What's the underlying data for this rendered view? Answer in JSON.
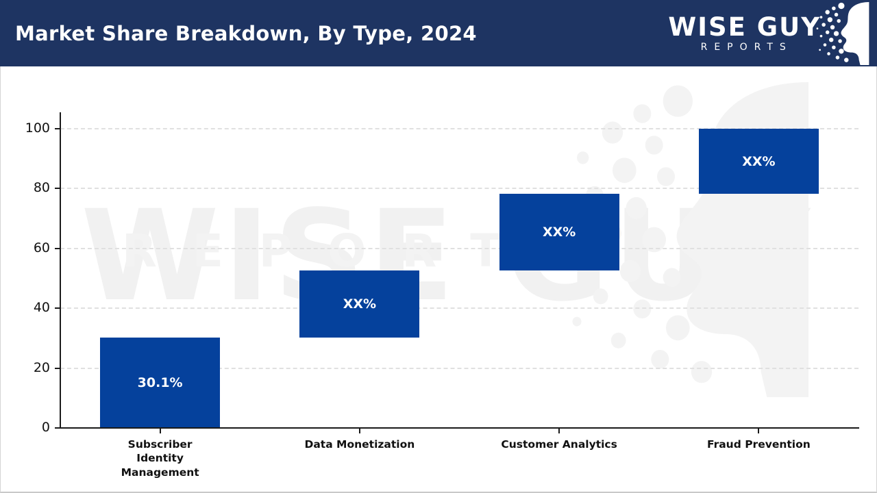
{
  "header": {
    "title": "Market Share Breakdown, By Type, 2024",
    "logo": {
      "line1": "WISE GUY",
      "line2": "REPORTS"
    }
  },
  "watermark": {
    "line1": "WISE GUY",
    "line2": "REPORTS"
  },
  "colors": {
    "header_bg": "#1e3462",
    "bar": "#05419c",
    "grid": "#e0e0e0",
    "axis": "#1a1a1a",
    "bar_label": "#ffffff",
    "watermark": "#f1f1f1"
  },
  "chart_data": {
    "type": "bar",
    "subtype": "waterfall",
    "title": "Market Share Breakdown, By Type, 2024",
    "categories": [
      "Subscriber Identity Management",
      "Data Monetization",
      "Customer Analytics",
      "Fraud Prevention"
    ],
    "category_display_lines": [
      [
        "Subscriber",
        "Identity",
        "Management"
      ],
      [
        "Data Monetization"
      ],
      [
        "Customer Analytics"
      ],
      [
        "Fraud Prevention"
      ]
    ],
    "segments": [
      {
        "category": "Subscriber Identity Management",
        "start": 0,
        "end": 30.1,
        "label": "30.1%"
      },
      {
        "category": "Data Monetization",
        "start": 30.1,
        "end": 52.6,
        "label": "XX%"
      },
      {
        "category": "Customer Analytics",
        "start": 52.6,
        "end": 78.2,
        "label": "XX%"
      },
      {
        "category": "Fraud Prevention",
        "start": 78.2,
        "end": 100,
        "label": "XX%"
      }
    ],
    "xlabel": "",
    "ylabel": "",
    "ylim": [
      0,
      100
    ],
    "yticks": [
      0,
      20,
      40,
      60,
      80,
      100
    ],
    "grid": "horizontal-dashed",
    "legend": "none"
  }
}
